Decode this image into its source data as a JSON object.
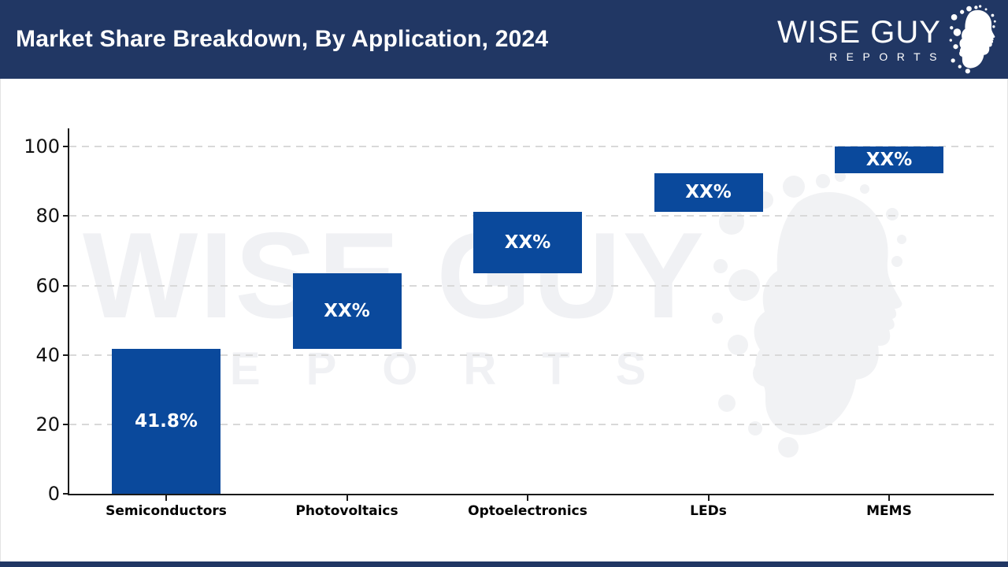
{
  "header": {
    "title": "Market Share Breakdown, By Application, 2024",
    "logo_line1": "WISE GUY",
    "logo_line2": "REPORTS"
  },
  "watermark": {
    "line1": "WISE GUY",
    "line2": "REPORTS"
  },
  "icons": {
    "logo_head": "dotted-head-profile",
    "watermark_head": "dotted-head-profile"
  },
  "colors": {
    "header_bg": "#213764",
    "footer_bg": "#213764",
    "bar": "#0a499c",
    "bar_label": "#ffffff",
    "gridline": "#d9d9d9",
    "axis": "#1a1a1a",
    "watermark": "#f0f1f4"
  },
  "chart_data": {
    "type": "bar",
    "subtype": "waterfall",
    "title": "Market Share Breakdown, By Application, 2024",
    "categories": [
      "Semiconductors",
      "Photovoltaics",
      "Optoelectronics",
      "LEDs",
      "MEMS"
    ],
    "segments": [
      {
        "category": "Semiconductors",
        "start": 0,
        "end": 41.8,
        "label": "41.8%"
      },
      {
        "category": "Photovoltaics",
        "start": 41.8,
        "end": 63.5,
        "label": "XX%"
      },
      {
        "category": "Optoelectronics",
        "start": 63.5,
        "end": 81.2,
        "label": "XX%"
      },
      {
        "category": "LEDs",
        "start": 81.2,
        "end": 92.4,
        "label": "XX%"
      },
      {
        "category": "MEMS",
        "start": 92.4,
        "end": 100,
        "label": "XX%"
      }
    ],
    "xlabel": "",
    "ylabel": "",
    "ylim": [
      0,
      100
    ],
    "yticks": [
      0,
      20,
      40,
      60,
      80,
      100
    ],
    "grid": "horizontal-dashed",
    "legend": "none",
    "bar_color": "#0a499c",
    "bar_label_color": "#ffffff"
  }
}
